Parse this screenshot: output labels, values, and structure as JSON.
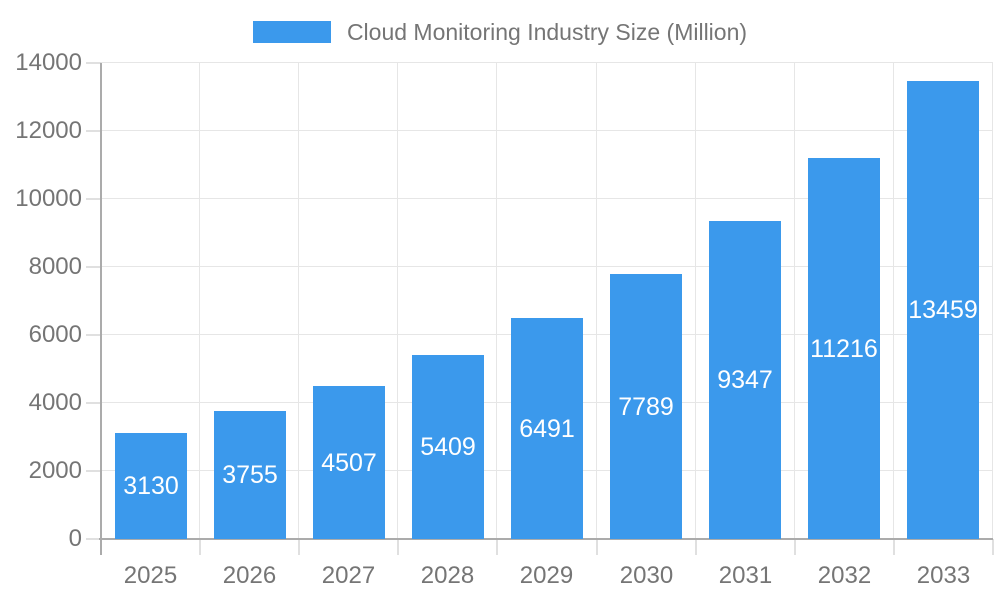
{
  "chart_data": {
    "type": "bar",
    "title": "Cloud Monitoring Industry Size (Million)",
    "categories": [
      "2025",
      "2026",
      "2027",
      "2028",
      "2029",
      "2030",
      "2031",
      "2032",
      "2033"
    ],
    "values": [
      3130,
      3755,
      4507,
      5409,
      6491,
      7789,
      9347,
      11216,
      13459
    ],
    "xlabel": "",
    "ylabel": "",
    "ylim": [
      0,
      14000
    ],
    "ytick_step": 2000,
    "ytick_labels": [
      "0",
      "2000",
      "4000",
      "6000",
      "8000",
      "10000",
      "12000",
      "14000"
    ],
    "grid": true,
    "legend_position": "top",
    "bar_labels_inside": true,
    "colors": {
      "bar": "#3B99EC",
      "bar_label": "#FFFFFF",
      "axis_line": "#ABABAB",
      "gridline": "#E6E6E6",
      "tick": "#E0E0E0",
      "text": "#757575",
      "background": "#FFFFFF"
    }
  }
}
